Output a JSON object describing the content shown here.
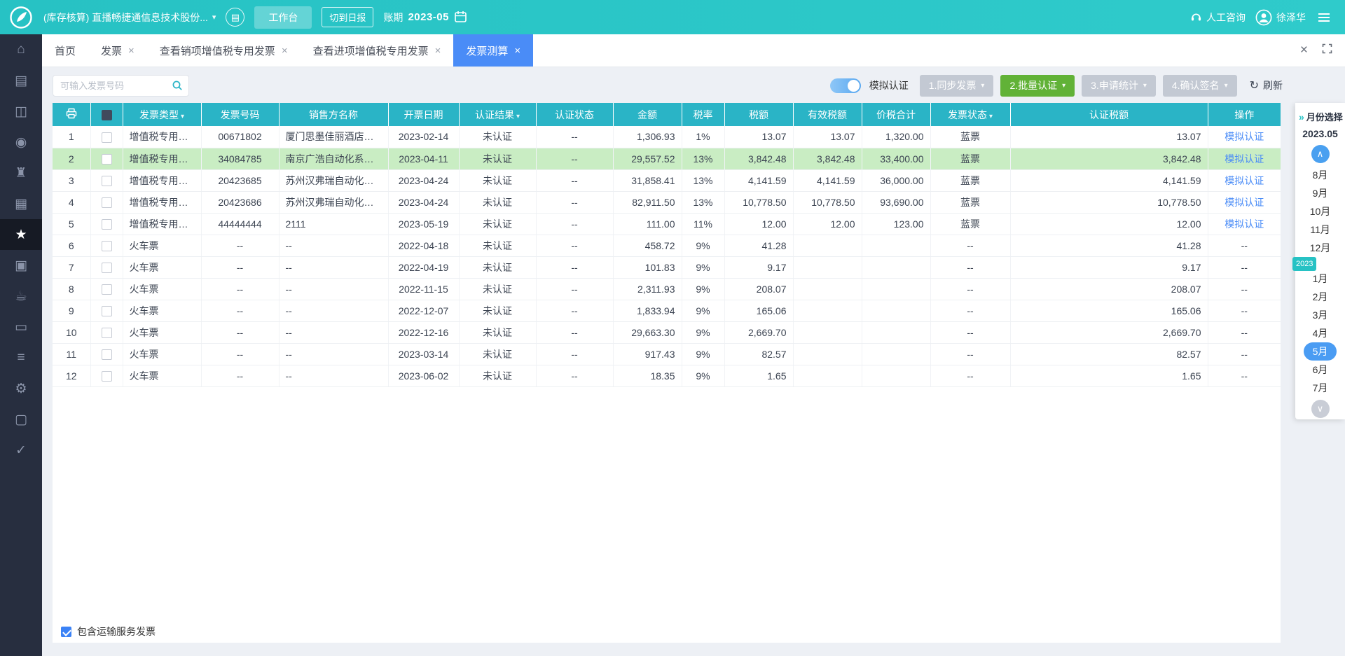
{
  "colors": {
    "teal": "#27c2c4",
    "table-header": "#2ab4c6",
    "sidebar": "#272e3f",
    "accent-blue": "#4a8cf7",
    "green-btn": "#61b237",
    "row-green": "#c9edc3",
    "danger": "#d4605f"
  },
  "topbar": {
    "company": "(库存核算) 直播畅捷通信息技术股份...",
    "workbench": "工作台",
    "switch_daily": "切到日报",
    "period_label": "账期",
    "period_value": "2023-05",
    "help": "人工咨询",
    "user": "徐泽华"
  },
  "sidebar": {
    "items": [
      {
        "name": "home-icon",
        "glyph": "⌂",
        "active": false
      },
      {
        "name": "invoice-icon",
        "glyph": "▤",
        "active": false
      },
      {
        "name": "chart-icon",
        "glyph": "◫",
        "active": false
      },
      {
        "name": "funds-icon",
        "glyph": "◉",
        "active": false
      },
      {
        "name": "bank-icon",
        "glyph": "♜",
        "active": false
      },
      {
        "name": "report-icon",
        "glyph": "▦",
        "active": false
      },
      {
        "name": "workbench-icon",
        "glyph": "★",
        "active": true
      },
      {
        "name": "archive-icon",
        "glyph": "▣",
        "active": false
      },
      {
        "name": "supplies-icon",
        "glyph": "☕",
        "active": false
      },
      {
        "name": "card-icon",
        "glyph": "▭",
        "active": false
      },
      {
        "name": "cabinet-icon",
        "glyph": "≡",
        "active": false
      },
      {
        "name": "settings-icon",
        "glyph": "⚙",
        "active": false
      },
      {
        "name": "screen-icon",
        "glyph": "▢",
        "active": false
      },
      {
        "name": "check-icon",
        "glyph": "✓",
        "active": false
      }
    ]
  },
  "tabs": [
    {
      "label": "首页",
      "closable": false,
      "active": false
    },
    {
      "label": "发票",
      "closable": true,
      "active": false
    },
    {
      "label": "查看销项增值税专用发票",
      "closable": true,
      "active": false
    },
    {
      "label": "查看进项增值税专用发票",
      "closable": true,
      "active": false
    },
    {
      "label": "发票测算",
      "closable": true,
      "active": true
    }
  ],
  "toolbar": {
    "search_placeholder": "可输入发票号码",
    "toggle_label": "模拟认证",
    "toggle_on": true,
    "buttons": [
      {
        "label": "1.同步发票",
        "style": "gray"
      },
      {
        "label": "2.批量认证",
        "style": "green"
      },
      {
        "label": "3.申请统计",
        "style": "gray"
      },
      {
        "label": "4.确认签名",
        "style": "gray"
      }
    ],
    "refresh_label": "刷新"
  },
  "table": {
    "headers": [
      {
        "label": "发票类型",
        "filter": true
      },
      {
        "label": "发票号码",
        "filter": false
      },
      {
        "label": "销售方名称",
        "filter": false
      },
      {
        "label": "开票日期",
        "filter": false
      },
      {
        "label": "认证结果",
        "filter": true
      },
      {
        "label": "认证状态",
        "filter": false
      },
      {
        "label": "金额",
        "filter": false
      },
      {
        "label": "税率",
        "filter": false
      },
      {
        "label": "税额",
        "filter": false
      },
      {
        "label": "有效税额",
        "filter": false
      },
      {
        "label": "价税合计",
        "filter": false
      },
      {
        "label": "发票状态",
        "filter": true
      },
      {
        "label": "认证税额",
        "filter": false
      },
      {
        "label": "操作",
        "filter": false
      }
    ],
    "rows": [
      {
        "index": 1,
        "type": "增值税专用发票",
        "number": "00671802",
        "seller": "厦门思墨佳丽酒店管理有限...",
        "date": "2023-02-14",
        "result": "未认证",
        "status": "--",
        "amount": "1,306.93",
        "rate": "1%",
        "tax": "13.07",
        "valid_tax": "13.07",
        "total": "1,320.00",
        "invoice_status": "蓝票",
        "auth_tax": "13.07",
        "action": "模拟认证",
        "highlighted": false
      },
      {
        "index": 2,
        "type": "增值税专用发票",
        "number": "34084785",
        "seller": "南京广浩自动化系统有限责...",
        "date": "2023-04-11",
        "result": "未认证",
        "status": "--",
        "amount": "29,557.52",
        "rate": "13%",
        "tax": "3,842.48",
        "valid_tax": "3,842.48",
        "total": "33,400.00",
        "invoice_status": "蓝票",
        "auth_tax": "3,842.48",
        "action": "模拟认证",
        "highlighted": true
      },
      {
        "index": 3,
        "type": "增值税专用发票",
        "number": "20423685",
        "seller": "苏州汉弗瑞自动化科技有限...",
        "date": "2023-04-24",
        "result": "未认证",
        "status": "--",
        "amount": "31,858.41",
        "rate": "13%",
        "tax": "4,141.59",
        "valid_tax": "4,141.59",
        "total": "36,000.00",
        "invoice_status": "蓝票",
        "auth_tax": "4,141.59",
        "action": "模拟认证",
        "highlighted": false
      },
      {
        "index": 4,
        "type": "增值税专用发票",
        "number": "20423686",
        "seller": "苏州汉弗瑞自动化科技有限...",
        "date": "2023-04-24",
        "result": "未认证",
        "status": "--",
        "amount": "82,911.50",
        "rate": "13%",
        "tax": "10,778.50",
        "valid_tax": "10,778.50",
        "total": "93,690.00",
        "invoice_status": "蓝票",
        "auth_tax": "10,778.50",
        "action": "模拟认证",
        "highlighted": false
      },
      {
        "index": 5,
        "type": "增值税专用发票",
        "number": "44444444",
        "seller": "2111",
        "date": "2023-05-19",
        "result": "未认证",
        "status": "--",
        "amount": "111.00",
        "rate": "11%",
        "tax": "12.00",
        "valid_tax": "12.00",
        "total": "123.00",
        "invoice_status": "蓝票",
        "auth_tax": "12.00",
        "action": "模拟认证",
        "highlighted": false
      },
      {
        "index": 6,
        "type": "火车票",
        "number": "--",
        "seller": "--",
        "date": "2022-04-18",
        "result": "未认证",
        "status": "--",
        "amount": "458.72",
        "rate": "9%",
        "tax": "41.28",
        "valid_tax": "",
        "total": "",
        "invoice_status": "--",
        "auth_tax": "41.28",
        "action": "--",
        "highlighted": false
      },
      {
        "index": 7,
        "type": "火车票",
        "number": "--",
        "seller": "--",
        "date": "2022-04-19",
        "result": "未认证",
        "status": "--",
        "amount": "101.83",
        "rate": "9%",
        "tax": "9.17",
        "valid_tax": "",
        "total": "",
        "invoice_status": "--",
        "auth_tax": "9.17",
        "action": "--",
        "highlighted": false
      },
      {
        "index": 8,
        "type": "火车票",
        "number": "--",
        "seller": "--",
        "date": "2022-11-15",
        "result": "未认证",
        "status": "--",
        "amount": "2,311.93",
        "rate": "9%",
        "tax": "208.07",
        "valid_tax": "",
        "total": "",
        "invoice_status": "--",
        "auth_tax": "208.07",
        "action": "--",
        "highlighted": false
      },
      {
        "index": 9,
        "type": "火车票",
        "number": "--",
        "seller": "--",
        "date": "2022-12-07",
        "result": "未认证",
        "status": "--",
        "amount": "1,833.94",
        "rate": "9%",
        "tax": "165.06",
        "valid_tax": "",
        "total": "",
        "invoice_status": "--",
        "auth_tax": "165.06",
        "action": "--",
        "highlighted": false
      },
      {
        "index": 10,
        "type": "火车票",
        "number": "--",
        "seller": "--",
        "date": "2022-12-16",
        "result": "未认证",
        "status": "--",
        "amount": "29,663.30",
        "rate": "9%",
        "tax": "2,669.70",
        "valid_tax": "",
        "total": "",
        "invoice_status": "--",
        "auth_tax": "2,669.70",
        "action": "--",
        "highlighted": false
      },
      {
        "index": 11,
        "type": "火车票",
        "number": "--",
        "seller": "--",
        "date": "2023-03-14",
        "result": "未认证",
        "status": "--",
        "amount": "917.43",
        "rate": "9%",
        "tax": "82.57",
        "valid_tax": "",
        "total": "",
        "invoice_status": "--",
        "auth_tax": "82.57",
        "action": "--",
        "highlighted": false
      },
      {
        "index": 12,
        "type": "火车票",
        "number": "--",
        "seller": "--",
        "date": "2023-06-02",
        "result": "未认证",
        "status": "--",
        "amount": "18.35",
        "rate": "9%",
        "tax": "1.65",
        "valid_tax": "",
        "total": "",
        "invoice_status": "--",
        "auth_tax": "1.65",
        "action": "--",
        "highlighted": false
      }
    ]
  },
  "month_panel": {
    "title": "月份选择",
    "current": "2023.05",
    "year_badge": "2023",
    "year_badge_after": "12月",
    "months": [
      "8月",
      "9月",
      "10月",
      "11月",
      "12月",
      "1月",
      "2月",
      "3月",
      "4月",
      "5月",
      "6月",
      "7月"
    ],
    "selected": "5月"
  },
  "footer": {
    "transport_checkbox_label": "包含运输服务发票",
    "transport_checkbox_checked": true
  }
}
